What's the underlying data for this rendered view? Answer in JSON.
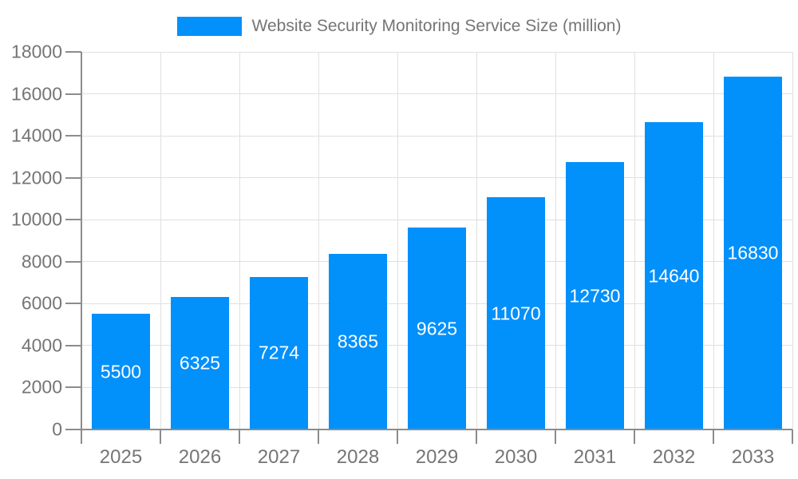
{
  "chart_data": {
    "type": "bar",
    "title": "Website Security Monitoring Service Size (million)",
    "legend": {
      "label": "Website Security Monitoring Service Size (million)",
      "position": "top"
    },
    "categories": [
      "2025",
      "2026",
      "2027",
      "2028",
      "2029",
      "2030",
      "2031",
      "2032",
      "2033"
    ],
    "series": [
      {
        "name": "Website Security Monitoring Service Size (million)",
        "values": [
          5500,
          6325,
          7274,
          8365,
          9625,
          11070,
          12730,
          14640,
          16830
        ]
      }
    ],
    "bar_value_labels": [
      "5500",
      "6325",
      "7274",
      "8365",
      "9625",
      "11070",
      "12730",
      "14640",
      "16830"
    ],
    "xlabel": "",
    "ylabel": "",
    "ylim": [
      0,
      18000
    ],
    "ytick_step": 2000,
    "ytick_labels": [
      "0",
      "2000",
      "4000",
      "6000",
      "8000",
      "10000",
      "12000",
      "14000",
      "16000",
      "18000"
    ],
    "grid": true,
    "colors": {
      "bar": "#0290FB",
      "grid_line": "#e0e0e0",
      "axis_line": "#8c8c8c",
      "tick_text": "#757575",
      "legend_text": "#757575",
      "bar_label_text": "#ffffff",
      "background": "#ffffff"
    }
  }
}
